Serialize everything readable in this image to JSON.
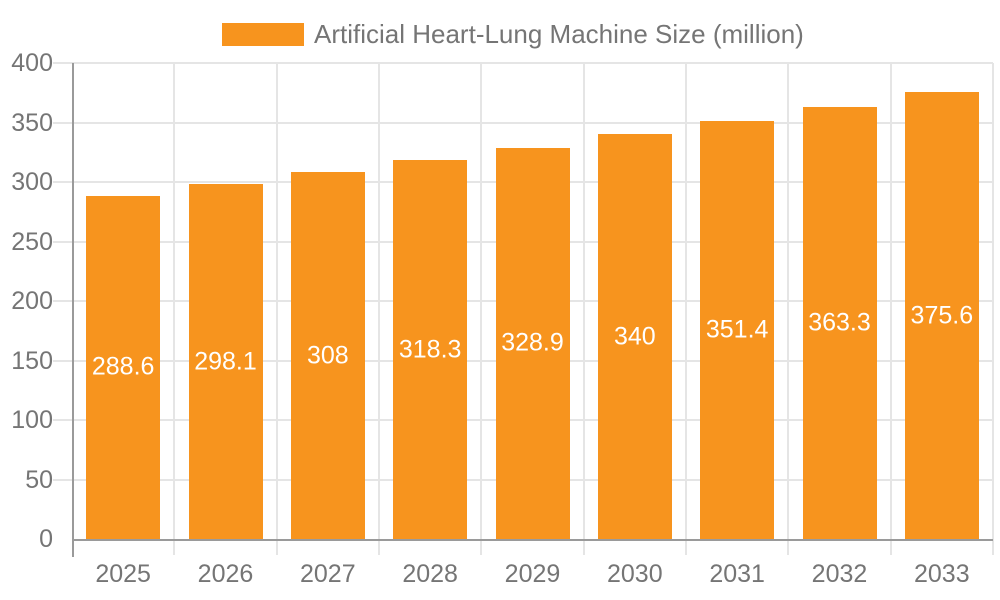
{
  "legend": {
    "label": "Artificial Heart-Lung Machine Size (million)",
    "swatch_color": "#f7941e"
  },
  "chart_data": {
    "type": "bar",
    "title": "Artificial Heart-Lung Machine Size (million)",
    "categories": [
      "2025",
      "2026",
      "2027",
      "2028",
      "2029",
      "2030",
      "2031",
      "2032",
      "2033"
    ],
    "series": [
      {
        "name": "Artificial Heart-Lung Machine Size (million)",
        "values": [
          288.6,
          298.1,
          308,
          318.3,
          328.9,
          340,
          351.4,
          363.3,
          375.6
        ]
      }
    ],
    "value_labels": [
      "288.6",
      "298.1",
      "308",
      "318.3",
      "328.9",
      "340",
      "351.4",
      "363.3",
      "375.6"
    ],
    "ytick_labels": [
      "0",
      "50",
      "100",
      "150",
      "200",
      "250",
      "300",
      "350",
      "400"
    ],
    "ylim": [
      0,
      400
    ],
    "ytick_step": 50,
    "xlabel": "",
    "ylabel": "",
    "grid": true,
    "legend_position": "top",
    "colors": {
      "bar": "#f7941e",
      "axis": "#9a9a9a",
      "grid": "#e5e5e5",
      "tick_label": "#757575",
      "value_label": "#ffffff",
      "background": "#ffffff"
    }
  }
}
